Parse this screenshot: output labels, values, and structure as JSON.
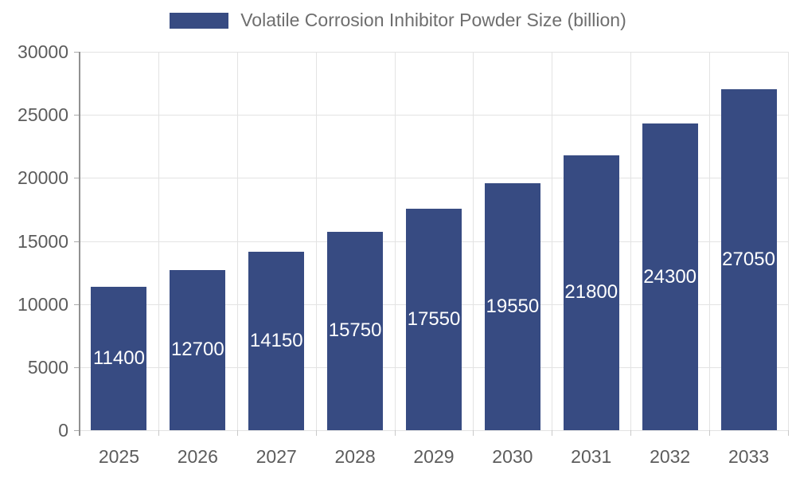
{
  "legend": {
    "label": "Volatile Corrosion Inhibitor Powder Size (billion)"
  },
  "chart_data": {
    "type": "bar",
    "title": "Volatile Corrosion Inhibitor Powder Size (billion)",
    "categories": [
      "2025",
      "2026",
      "2027",
      "2028",
      "2029",
      "2030",
      "2031",
      "2032",
      "2033"
    ],
    "values": [
      11400,
      12700,
      14150,
      15750,
      17550,
      19550,
      21800,
      24300,
      27050
    ],
    "ylim": [
      0,
      30000
    ],
    "yticks": [
      0,
      5000,
      10000,
      15000,
      20000,
      25000,
      30000
    ],
    "grid": true,
    "legend_position": "top",
    "colors": {
      "bar": "#374B82",
      "bar_value_text": "#ffffff",
      "axis_text": "#5c5c5c",
      "legend_text": "#6e6e6e",
      "gridline": "#e3e3e3",
      "axis_line": "#919191",
      "background": "#ffffff"
    }
  }
}
